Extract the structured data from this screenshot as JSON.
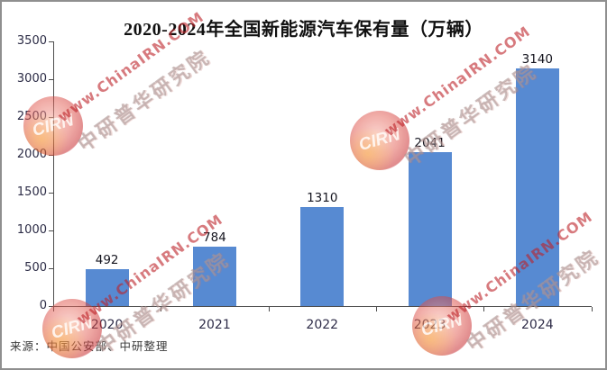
{
  "title": "2020-2024年全国新能源汽车保有量（万辆）",
  "source": "来源：中国公安部、中研整理",
  "chart_data": {
    "type": "bar",
    "title": "2020-2024年全国新能源汽车保有量（万辆）",
    "categories": [
      "2020",
      "2021",
      "2022",
      "2023",
      "2024"
    ],
    "values": [
      492,
      784,
      1310,
      2041,
      3140
    ],
    "data_labels": [
      "492",
      "784",
      "1310",
      "2041",
      "3140"
    ],
    "xlabel": "",
    "ylabel": "",
    "ylim": [
      0,
      3500
    ],
    "ytick_interval": 500,
    "yticks": [
      0,
      500,
      1000,
      1500,
      2000,
      2500,
      3000,
      3500
    ],
    "grid": false,
    "legend": false,
    "bar_color": "#578ad2"
  },
  "watermark": {
    "logo_text": "CIRN",
    "url_text": "www.ChinaIRN.COM",
    "org_text": "中研普华研究院"
  },
  "colors": {
    "bar": "#578ad2",
    "axis": "#4d4d4d",
    "tick_label": "#2c2c46",
    "title_text": "#111111",
    "frame": "#8f8f8f",
    "watermark_red": "#bd2228",
    "watermark_gray": "#ac9694",
    "background": "#ffffff"
  }
}
